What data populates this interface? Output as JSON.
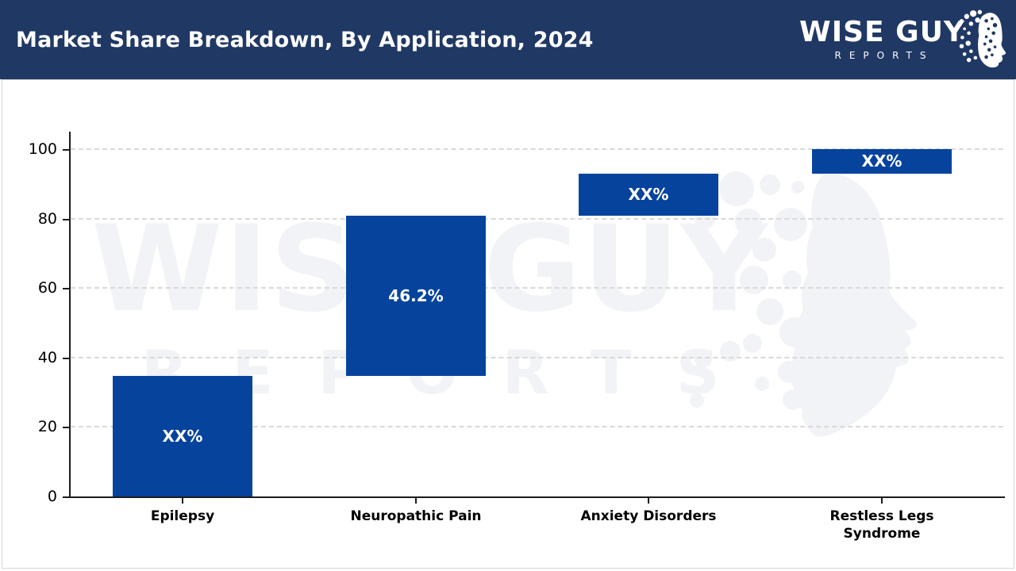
{
  "header": {
    "title": "Market Share Breakdown, By Application, 2024",
    "logo": {
      "line1": "WISE GUY",
      "line2": "REPORTS"
    }
  },
  "watermark": {
    "line1": "WISE GUY",
    "line2": "REPORTS"
  },
  "colors": {
    "header_bg": "#203864",
    "bar_fill": "#06439d",
    "bar_label": "#ffffff",
    "gridline": "#d9d9d9",
    "axis": "#1c1c1c",
    "tick_label": "#000000",
    "watermark": "#f2f3f6"
  },
  "chart_data": {
    "type": "bar",
    "subtype": "stacked-waterfall",
    "title": "Market Share Breakdown, By Application, 2024",
    "categories": [
      "Epilepsy",
      "Neuropathic Pain",
      "Anxiety Disorders",
      "Restless Legs\nSyndrome"
    ],
    "segments": [
      {
        "category": "Epilepsy",
        "start": 0,
        "end": 34.6,
        "value_label": "XX%"
      },
      {
        "category": "Neuropathic Pain",
        "start": 34.6,
        "end": 80.8,
        "value_label": "46.2%"
      },
      {
        "category": "Anxiety Disorders",
        "start": 80.8,
        "end": 92.9,
        "value_label": "XX%"
      },
      {
        "category": "Restless Legs Syndrome",
        "start": 92.9,
        "end": 100,
        "value_label": "XX%"
      }
    ],
    "y_ticks": [
      0,
      20,
      40,
      60,
      80,
      100
    ],
    "ylim": [
      0,
      105
    ],
    "xlabel": "",
    "ylabel": "",
    "grid": "horizontal-dashed",
    "legend": "none"
  }
}
